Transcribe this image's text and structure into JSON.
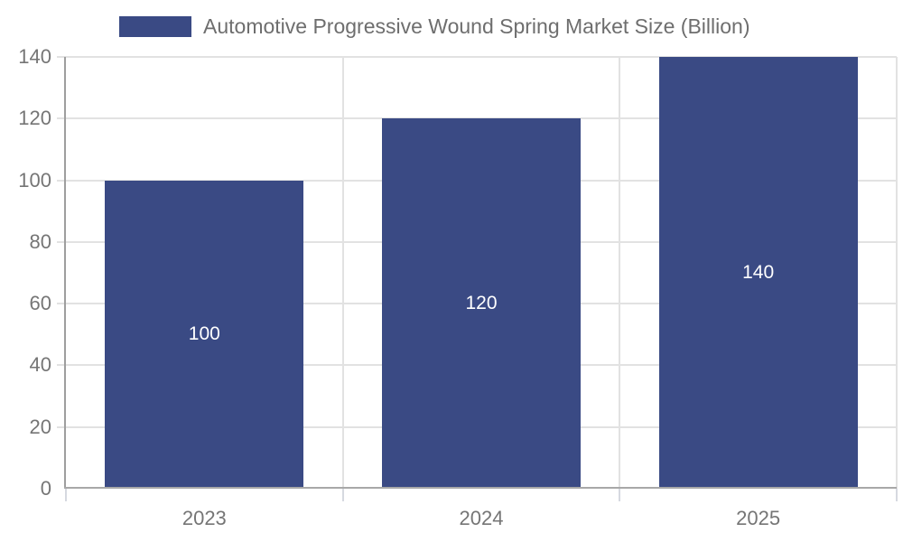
{
  "chart_data": {
    "type": "bar",
    "title": "Automotive Progressive Wound Spring Market Size (Billion)",
    "legend": {
      "label": "Automotive Progressive Wound Spring Market Size (Billion)",
      "position": "top",
      "swatch_color": "#3a4a84"
    },
    "categories": [
      "2023",
      "2024",
      "2025"
    ],
    "series": [
      {
        "name": "Automotive Progressive Wound Spring Market Size (Billion)",
        "values": [
          100,
          120,
          140
        ]
      }
    ],
    "bar_value_labels": [
      "100",
      "120",
      "140"
    ],
    "xlabel": "",
    "ylabel": "",
    "ylim": [
      0,
      140
    ],
    "yticks": [
      0,
      20,
      40,
      60,
      80,
      100,
      120,
      140
    ],
    "grid": true,
    "colors": {
      "bar": "#3a4a84",
      "bar_label": "#ffffff",
      "gridline": "#e2e2e2",
      "axis_line": "#9e9e9e",
      "tick_label": "#757575",
      "title": "#6e6e6e",
      "background": "#ffffff"
    }
  }
}
